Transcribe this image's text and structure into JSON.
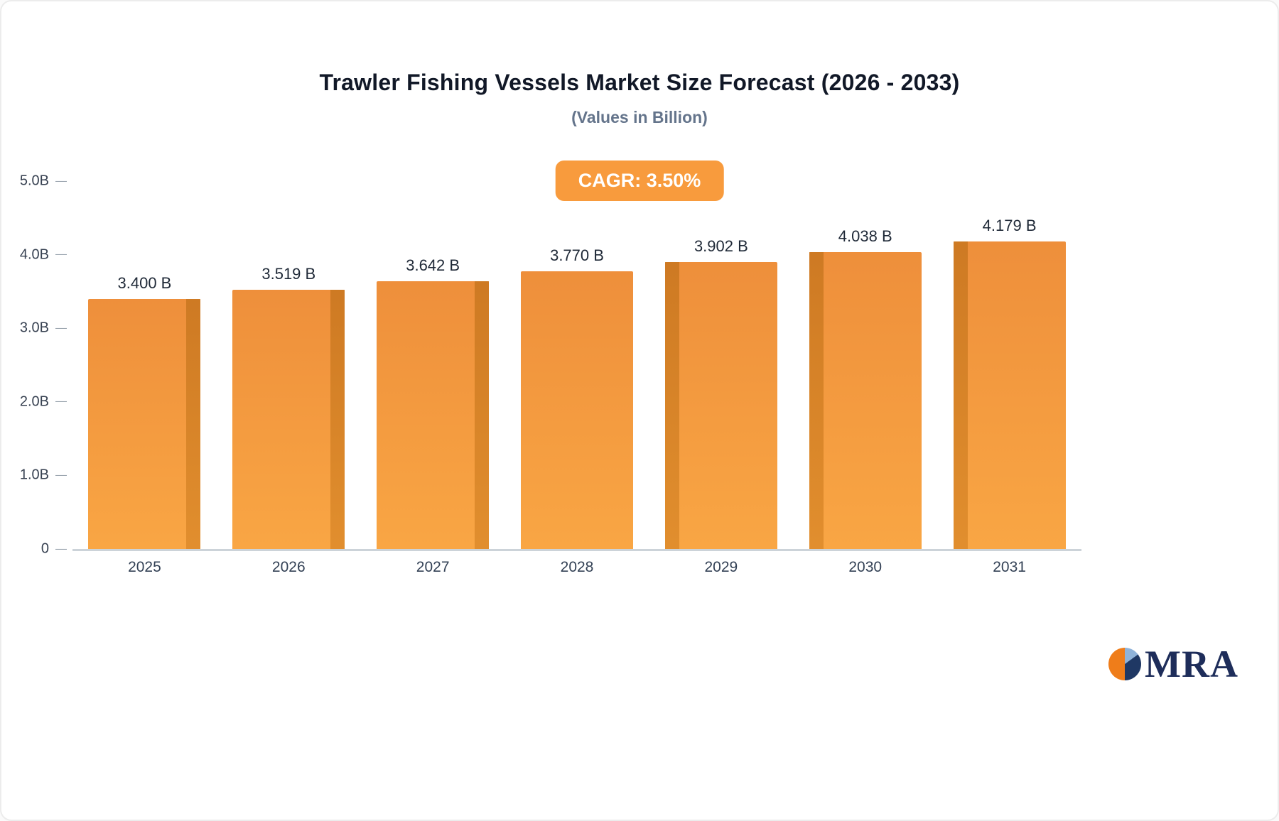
{
  "chart_data": {
    "type": "bar",
    "title": "Trawler Fishing Vessels Market Size Forecast (2026 - 2033)",
    "subtitle": "(Values in Billion)",
    "cagr_badge": "CAGR: 3.50%",
    "categories": [
      "2025",
      "2026",
      "2027",
      "2028",
      "2029",
      "2030",
      "2031"
    ],
    "values": [
      3.4,
      3.519,
      3.642,
      3.77,
      3.902,
      4.038,
      4.179
    ],
    "value_labels": [
      "3.400 B",
      "3.519 B",
      "3.642 B",
      "3.770 B",
      "3.902 B",
      "4.038 B",
      "4.179 B"
    ],
    "ylim": [
      0,
      5
    ],
    "yticks": [
      {
        "label": "5.0B",
        "value": 5
      },
      {
        "label": "4.0B",
        "value": 4
      },
      {
        "label": "3.0B",
        "value": 3
      },
      {
        "label": "2.0B",
        "value": 2
      },
      {
        "label": "1.0B",
        "value": 1
      },
      {
        "label": "0",
        "value": 0
      }
    ],
    "grid": false,
    "legend": "none",
    "colors": {
      "bar_top": "#ee8f3b",
      "bar_bottom": "#f9a644",
      "bar_side": "#c8761f",
      "badge_bg": "#f89b3d"
    }
  },
  "logo": {
    "text": "MRA",
    "icon": "pie-logo-icon"
  }
}
